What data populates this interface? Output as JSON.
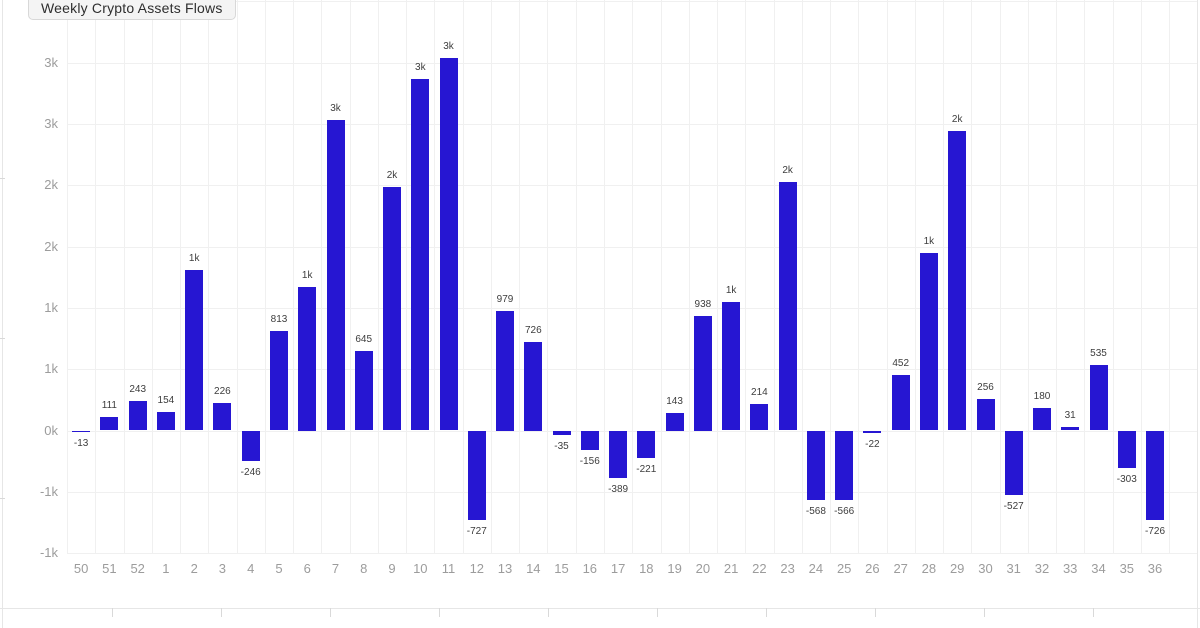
{
  "header": {
    "title": "Weekly Crypto Assets Flows"
  },
  "colors": {
    "background": "#ffffff",
    "bar": "#2616d2",
    "gridline": "#f0f0f0",
    "frame_border": "#e6e6e6",
    "axis_label": "#9c9c9c",
    "value_label": "#3d3d3d",
    "title_chip_bg": "#f4f4f4",
    "title_chip_border": "#d8d8d8",
    "title_chip_text": "#2e2e2e"
  },
  "chart_data": {
    "type": "bar",
    "title": "Weekly Crypto Assets Flows",
    "xlabel": "",
    "ylabel": "",
    "grid": true,
    "legend_position": "none",
    "categories": [
      "50",
      "51",
      "52",
      "1",
      "2",
      "3",
      "4",
      "5",
      "6",
      "7",
      "8",
      "9",
      "10",
      "11",
      "12",
      "13",
      "14",
      "15",
      "16",
      "17",
      "18",
      "19",
      "20",
      "21",
      "22",
      "23",
      "24",
      "25",
      "26",
      "27",
      "28",
      "29",
      "30",
      "31",
      "32",
      "33",
      "34",
      "35",
      "36"
    ],
    "values": [
      -13,
      111,
      243,
      154,
      1310,
      226,
      -246,
      813,
      1170,
      2530,
      645,
      1985,
      2870,
      3040,
      -727,
      979,
      726,
      -35,
      -156,
      -389,
      -221,
      143,
      938,
      1050,
      214,
      2030,
      -568,
      -566,
      -22,
      452,
      1450,
      2440,
      256,
      -527,
      180,
      31,
      535,
      -303,
      -726
    ],
    "bar_labels": [
      "-13",
      "111",
      "243",
      "154",
      "1k",
      "226",
      "-246",
      "813",
      "1k",
      "3k",
      "645",
      "2k",
      "3k",
      "3k",
      "-727",
      "979",
      "726",
      "-35",
      "-156",
      "-389",
      "-221",
      "143",
      "938",
      "1k",
      "214",
      "2k",
      "-568",
      "-566",
      "-22",
      "452",
      "1k",
      "2k",
      "256",
      "-527",
      "180",
      "31",
      "535",
      "-303",
      "-726"
    ],
    "y_axis": {
      "min": -1000,
      "max": 3500,
      "tick_step": 500,
      "tick_labels": [
        {
          "value": 3000,
          "label": "3k"
        },
        {
          "value": 2500,
          "label": "3k"
        },
        {
          "value": 2000,
          "label": "2k"
        },
        {
          "value": 1500,
          "label": "2k"
        },
        {
          "value": 1000,
          "label": "1k"
        },
        {
          "value": 500,
          "label": "1k"
        },
        {
          "value": 0,
          "label": "0k"
        },
        {
          "value": -500,
          "label": "-1k"
        },
        {
          "value": -1000,
          "label": "-1k"
        }
      ]
    }
  }
}
